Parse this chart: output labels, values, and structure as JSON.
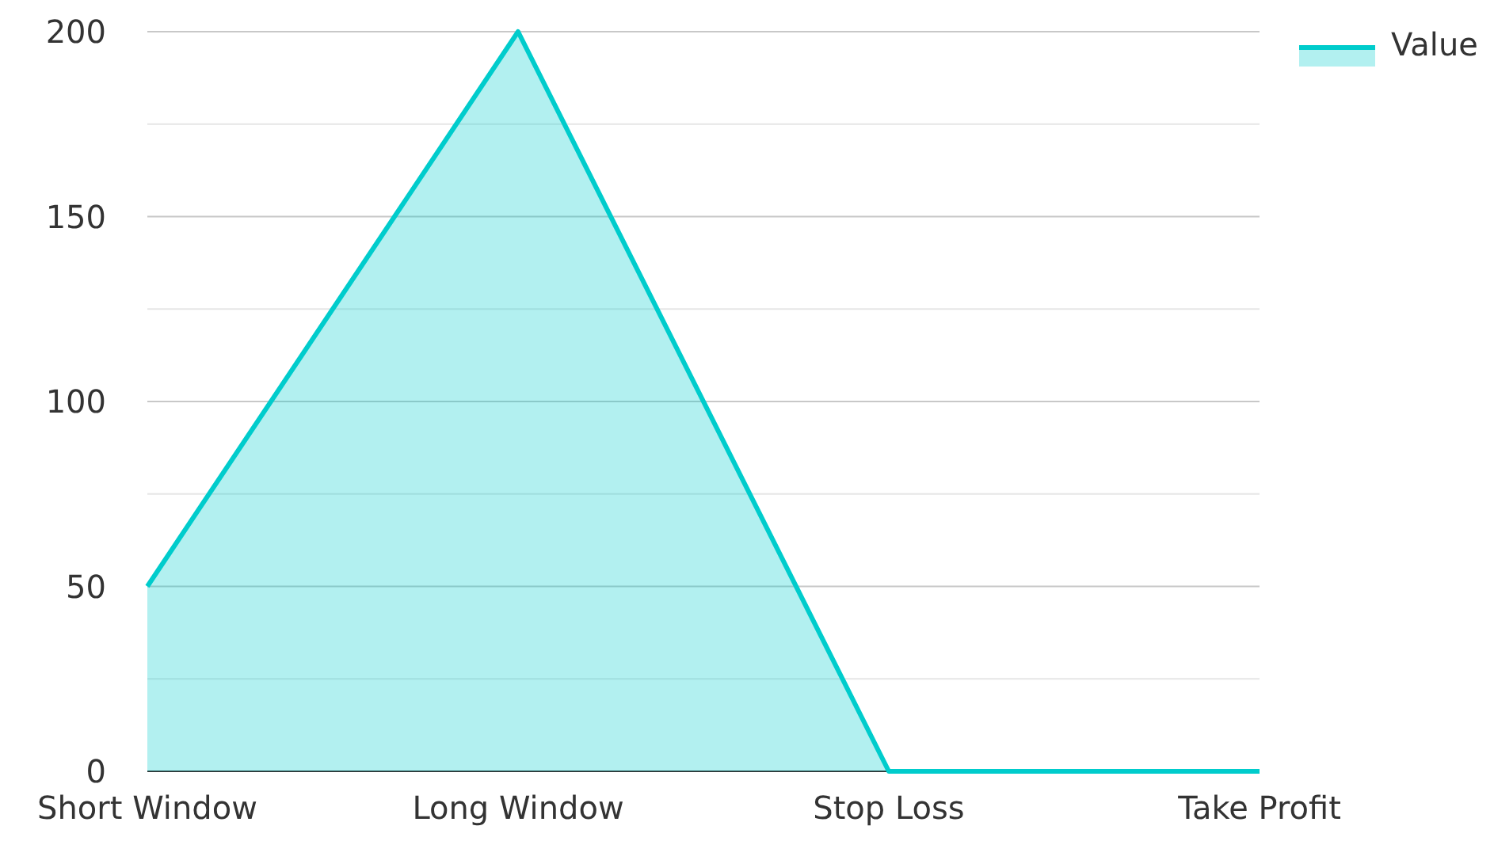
{
  "chart_data": {
    "type": "area",
    "categories": [
      "Short Window",
      "Long Window",
      "Stop Loss",
      "Take Profit"
    ],
    "series": [
      {
        "name": "Value",
        "color": "#00cccc",
        "values": [
          50,
          200,
          0,
          0
        ]
      }
    ],
    "ylim": [
      0,
      200
    ],
    "yticks": [
      0,
      {
        "value": 25,
        "label": null
      },
      50,
      {
        "value": 75,
        "label": null
      },
      100,
      {
        "value": 125,
        "label": null
      },
      150,
      {
        "value": 175,
        "label": null
      },
      200
    ],
    "grid": "y",
    "legend": "top right"
  }
}
